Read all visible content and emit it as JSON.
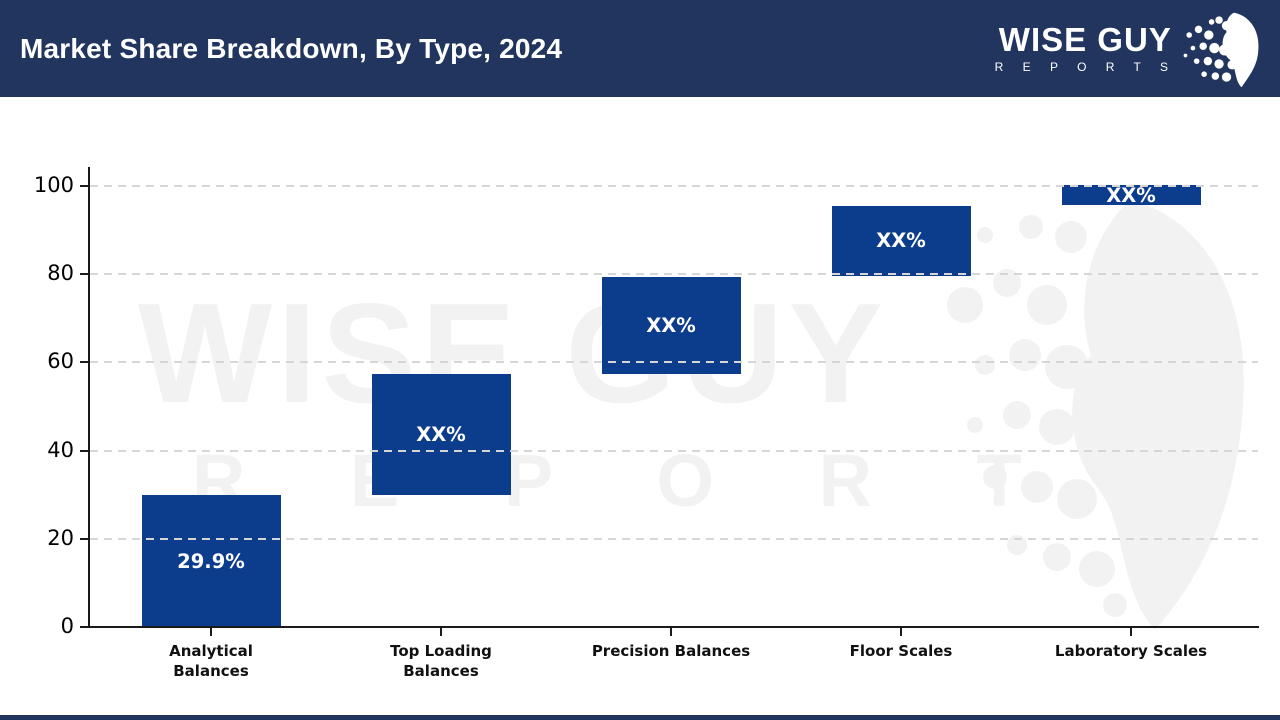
{
  "header": {
    "title": "Market Share Breakdown, By Type, 2024",
    "brand": {
      "name_top": "WISE GUY",
      "name_bottom": "R E P O R T S"
    }
  },
  "watermark": {
    "text_top": "WISE GUY",
    "text_bottom": "R E P O R T S"
  },
  "colors": {
    "header_bg": "#21355f",
    "bar_fill": "#0c3c8c",
    "bar_label_text": "#ffffff",
    "axis": "#1a1a1a",
    "gridline": "#d6d6d6",
    "watermark": "#f2f2f2",
    "footer_bar": "#21355f"
  },
  "chart_data": {
    "type": "bar",
    "subtype": "floating-waterfall",
    "title": "Market Share Breakdown, By Type, 2024",
    "categories": [
      "Analytical Balances",
      "Top Loading Balances",
      "Precision Balances",
      "Floor Scales",
      "Laboratory Scales"
    ],
    "tick_labels": [
      "Analytical\nBalances",
      "Top Loading\nBalances",
      "Precision Balances",
      "Floor Scales",
      "Laboratory Scales"
    ],
    "segments": [
      {
        "category": "Analytical Balances",
        "start": 0,
        "end": 29.9,
        "value_label": "29.9%"
      },
      {
        "category": "Top Loading Balances",
        "start": 29.9,
        "end": 57.4,
        "value_label": "XX%"
      },
      {
        "category": "Precision Balances",
        "start": 57.4,
        "end": 79.4,
        "value_label": "XX%"
      },
      {
        "category": "Floor Scales",
        "start": 79.6,
        "end": 95.5,
        "value_label": "XX%"
      },
      {
        "category": "Laboratory Scales",
        "start": 95.7,
        "end": 100.2,
        "value_label": "XX%"
      }
    ],
    "xlabel": "",
    "ylabel": "",
    "yticks": [
      0,
      20,
      40,
      60,
      80,
      100
    ],
    "ylim": [
      0,
      105
    ],
    "grid": "horizontal-dashed",
    "legend": "none"
  }
}
